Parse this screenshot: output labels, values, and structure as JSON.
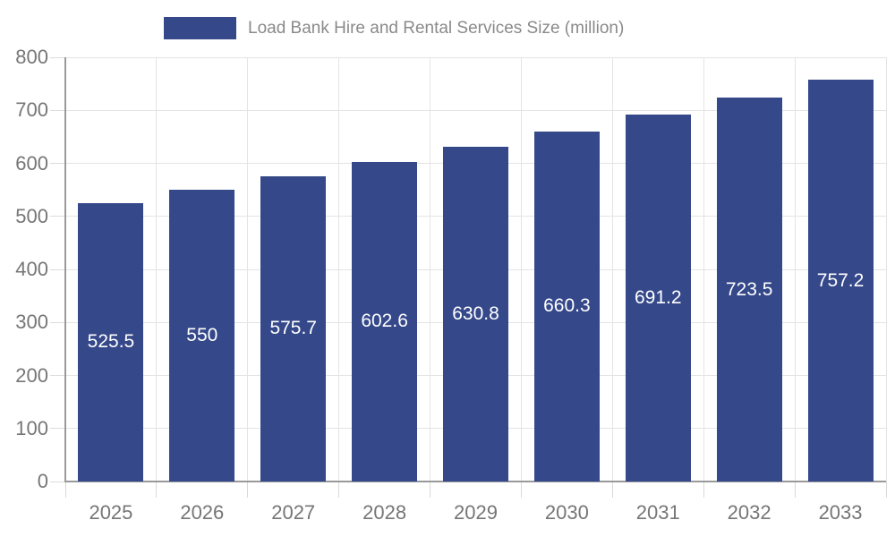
{
  "legend": {
    "label": "Load Bank Hire and Rental Services Size (million)"
  },
  "chart_data": {
    "type": "bar",
    "title": "Load Bank Hire and Rental Services Size (million)",
    "categories": [
      "2025",
      "2026",
      "2027",
      "2028",
      "2029",
      "2030",
      "2031",
      "2032",
      "2033"
    ],
    "values": [
      525.5,
      550,
      575.7,
      602.6,
      630.8,
      660.3,
      691.2,
      723.5,
      757.2
    ],
    "bar_labels": [
      "525.5",
      "550",
      "575.7",
      "602.6",
      "630.8",
      "660.3",
      "691.2",
      "723.5",
      "757.2"
    ],
    "xlabel": "",
    "ylabel": "",
    "ylim": [
      0,
      800
    ],
    "yticks": [
      0,
      100,
      200,
      300,
      400,
      500,
      600,
      700,
      800
    ],
    "grid": true,
    "legend_position": "top",
    "bar_label_position": "center",
    "colors": {
      "bar": "#35488a",
      "bar_label": "#ffffff",
      "axis_text": "#767676",
      "legend_text": "#8a8a8a",
      "gridline": "#e4e4e4",
      "axis_line": "#9a9a9a"
    }
  }
}
